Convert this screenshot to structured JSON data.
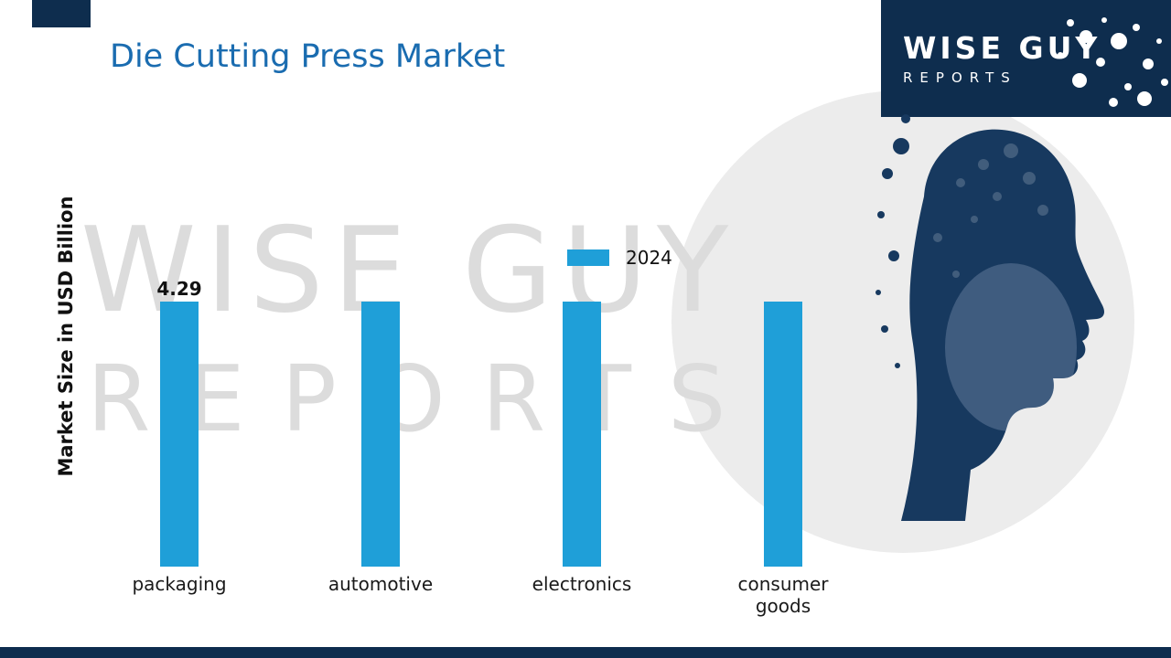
{
  "brand": {
    "navy": "#0e2d4e",
    "logo_line1": "WISE GUY",
    "logo_line2": "REPORTS"
  },
  "header": {
    "title": "Die Cutting Press Market",
    "title_color": "#1a6cb0"
  },
  "watermark": {
    "line1": "WISE GUY",
    "line2": "REPORTS"
  },
  "chart_data": {
    "type": "bar",
    "title": "Die Cutting Press Market",
    "xlabel": "",
    "ylabel": "Market Size in USD Billion",
    "categories": [
      "packaging",
      "automotive",
      "electronics",
      "consumer goods"
    ],
    "values": [
      4.29,
      4.29,
      4.29,
      4.29
    ],
    "data_labels": [
      "4.29",
      "",
      "",
      ""
    ],
    "ylim": [
      0,
      5
    ],
    "bar_color": "#1f9fd8",
    "grid": false,
    "legend": {
      "position": "top-center",
      "entries": [
        {
          "label": "2024",
          "color": "#1f9fd8"
        }
      ]
    }
  }
}
